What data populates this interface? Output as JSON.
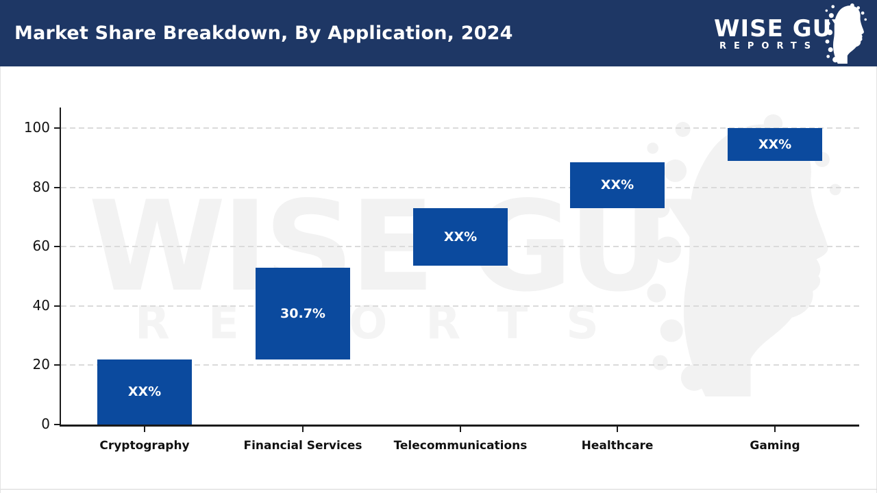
{
  "header": {
    "title": "Market Share Breakdown, By Application, 2024",
    "logo": {
      "line1": "WISE GUY",
      "line2": "REPORTS"
    }
  },
  "watermark": {
    "line1": "WISE GUY",
    "line2": "REPORTS"
  },
  "colors": {
    "header_bg": "#1E3765",
    "bar": "#0B4A9E",
    "axis": "#1a1a1a",
    "gridline": "#dadada",
    "watermark": "#f2f2f2",
    "title_text": "#ffffff",
    "bar_label_text": "#ffffff"
  },
  "chart_data": {
    "type": "bar",
    "subtype": "waterfall-floating-bars",
    "title": "Market Share Breakdown, By Application, 2024",
    "categories": [
      "Cryptography",
      "Financial Services",
      "Telecommunications",
      "Healthcare",
      "Gaming"
    ],
    "bars": [
      {
        "category": "Cryptography",
        "start": 0,
        "end": 22,
        "label": "XX%"
      },
      {
        "category": "Financial Services",
        "start": 22,
        "end": 53,
        "label": "30.7%"
      },
      {
        "category": "Telecommunications",
        "start": 53.5,
        "end": 73,
        "label": "XX%"
      },
      {
        "category": "Healthcare",
        "start": 73,
        "end": 88.5,
        "label": "XX%"
      },
      {
        "category": "Gaming",
        "start": 89,
        "end": 100,
        "label": "XX%"
      }
    ],
    "yticks": [
      0,
      20,
      40,
      60,
      80,
      100
    ],
    "ylim": [
      0,
      107
    ],
    "xlabel": "",
    "ylabel": "",
    "grid": "horizontal-dashed",
    "legend": "none",
    "bar_color": "#0B4A9E"
  }
}
